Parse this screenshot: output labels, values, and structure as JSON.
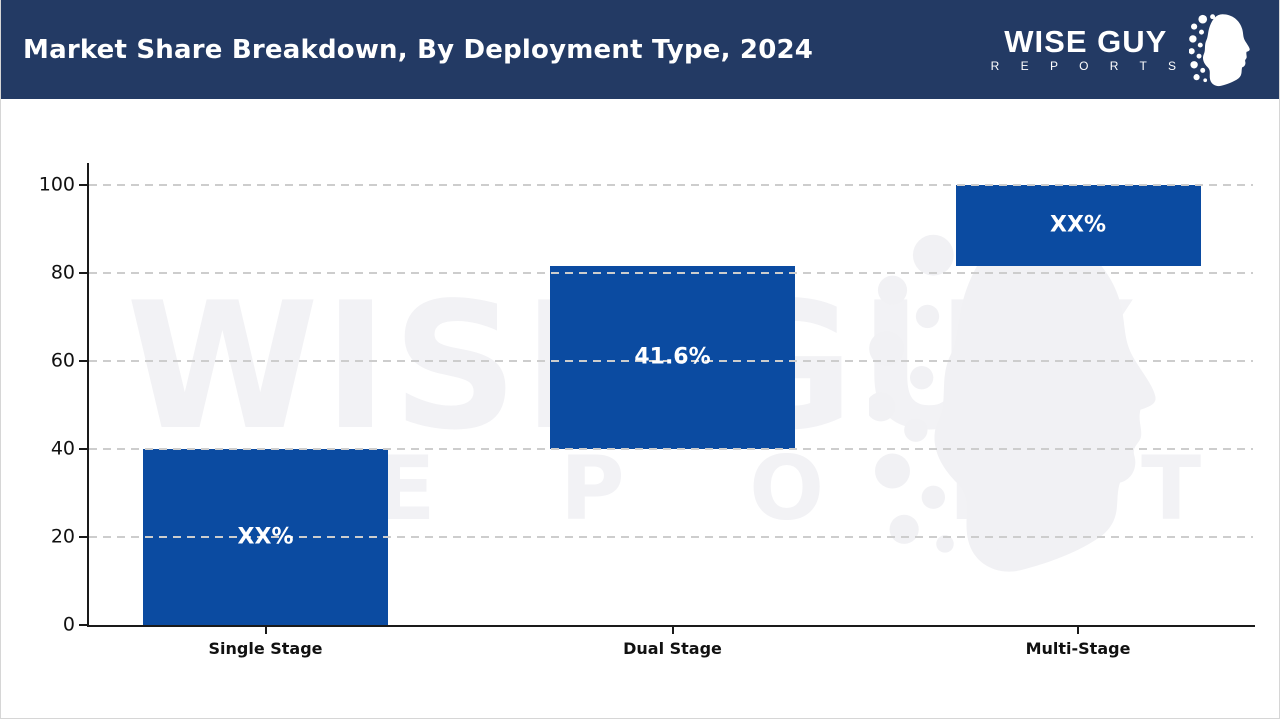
{
  "header": {
    "title": "Market Share Breakdown, By Deployment Type, 2024",
    "background": "#233A64",
    "logo": {
      "line1": "WISE GUY",
      "line2": "R E P O R T S",
      "face_icon": "dotted-face-profile"
    }
  },
  "watermark": {
    "line1": "WISE GUY",
    "line2": "R E P O R T S",
    "face_icon": "dotted-face-profile",
    "color": "#f2f2f5"
  },
  "chart_data": {
    "type": "bar",
    "subtype": "floating-stacked-waterfall",
    "title": "Market Share Breakdown, By Deployment Type, 2024",
    "categories": [
      "Single Stage",
      "Dual Stage",
      "Multi-Stage"
    ],
    "bars": [
      {
        "category": "Single Stage",
        "start": 0,
        "end": 40,
        "label": "XX%"
      },
      {
        "category": "Dual Stage",
        "start": 40,
        "end": 81.6,
        "label": "41.6%"
      },
      {
        "category": "Multi-Stage",
        "start": 81.6,
        "end": 100,
        "label": "XX%"
      }
    ],
    "bar_color": "#0B4BA1",
    "label_color": "#ffffff",
    "yticks": [
      0,
      20,
      40,
      60,
      80,
      100
    ],
    "ylim": [
      0,
      105
    ],
    "xlabel": "",
    "ylabel": "",
    "grid": {
      "axis": "y",
      "style": "dashed",
      "color": "#cdcdcd",
      "above_bars": true
    },
    "legend": "none"
  }
}
